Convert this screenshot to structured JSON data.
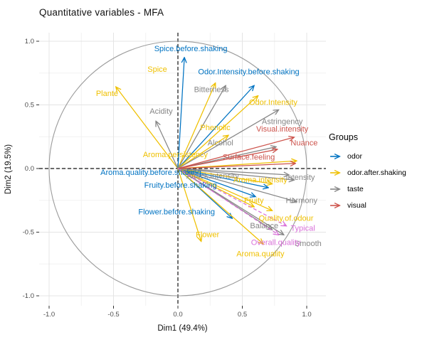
{
  "chart_data": {
    "type": "scatter",
    "subtype": "mfa-correlation-circle",
    "title": "Quantitative variables - MFA",
    "xlabel": "Dim1 (49.4%)",
    "ylabel": "Dim2 (19.5%)",
    "xlim": [
      -1.09,
      1.13
    ],
    "ylim": [
      -1.08,
      1.07
    ],
    "xticks": [
      -1.0,
      -0.5,
      0.0,
      0.5,
      1.0
    ],
    "yticks": [
      -1.0,
      -0.5,
      0.0,
      0.5,
      1.0
    ],
    "grid": "major+minor",
    "unit_circle": true,
    "zero_lines_dashed": true,
    "legend": {
      "title": "Groups",
      "position": "right",
      "entries": [
        {
          "label": "odor",
          "color": "#0073C2"
        },
        {
          "label": "odor.after.shaking",
          "color": "#EFC000"
        },
        {
          "label": "taste",
          "color": "#868686"
        },
        {
          "label": "visual",
          "color": "#CD534C"
        }
      ]
    },
    "groups": {
      "odor": {
        "color": "#0073C2",
        "dashed": false
      },
      "odor.after.shaking": {
        "color": "#EFC000",
        "dashed": false
      },
      "taste": {
        "color": "#868686",
        "dashed": false
      },
      "visual": {
        "color": "#CD534C",
        "dashed": false
      },
      "supplementary": {
        "color": "#D96FD9",
        "dashed": true
      }
    },
    "variables": [
      {
        "name": "Spice.before.shaking",
        "group": "odor",
        "x": 0.05,
        "y": 0.87,
        "lx": 0.1,
        "ly": 0.94
      },
      {
        "name": "Odor.Intensity.before.shaking",
        "group": "odor",
        "x": 0.59,
        "y": 0.65,
        "lx": 0.55,
        "ly": 0.76
      },
      {
        "name": "Aroma.quality.before.shaking",
        "group": "odor",
        "x": 0.7,
        "y": -0.15,
        "lx": -0.21,
        "ly": -0.03
      },
      {
        "name": "Fruity.before.shaking",
        "group": "odor",
        "x": 0.6,
        "y": -0.22,
        "lx": 0.02,
        "ly": -0.13
      },
      {
        "name": "Flower.before.shaking",
        "group": "odor",
        "x": 0.42,
        "y": -0.39,
        "lx": -0.01,
        "ly": -0.34
      },
      {
        "name": "Spice",
        "group": "odor.after.shaking",
        "x": 0.29,
        "y": 0.67,
        "lx": -0.16,
        "ly": 0.78
      },
      {
        "name": "Plante",
        "group": "odor.after.shaking",
        "x": -0.48,
        "y": 0.64,
        "lx": -0.55,
        "ly": 0.59
      },
      {
        "name": "Odor.Intensity",
        "group": "odor.after.shaking",
        "x": 0.62,
        "y": 0.57,
        "lx": 0.74,
        "ly": 0.52
      },
      {
        "name": "Phenolic",
        "group": "odor.after.shaking",
        "x": 0.39,
        "y": 0.26,
        "lx": 0.29,
        "ly": 0.32
      },
      {
        "name": "Aroma.persistency",
        "group": "odor.after.shaking",
        "x": 0.92,
        "y": 0.06,
        "lx": -0.02,
        "ly": 0.11
      },
      {
        "name": "Aroma.intensity",
        "group": "odor.after.shaking",
        "x": 0.73,
        "y": -0.12,
        "lx": 0.64,
        "ly": -0.09
      },
      {
        "name": "Fruity",
        "group": "odor.after.shaking",
        "x": 0.59,
        "y": -0.3,
        "lx": 0.59,
        "ly": -0.25
      },
      {
        "name": "Quality.of.odour",
        "group": "odor.after.shaking",
        "x": 0.73,
        "y": -0.33,
        "lx": 0.84,
        "ly": -0.39
      },
      {
        "name": "Flower",
        "group": "odor.after.shaking",
        "x": 0.18,
        "y": -0.57,
        "lx": 0.23,
        "ly": -0.52
      },
      {
        "name": "Aroma.quality",
        "group": "odor.after.shaking",
        "x": 0.66,
        "y": -0.59,
        "lx": 0.64,
        "ly": -0.67
      },
      {
        "name": "Bitterness",
        "group": "taste",
        "x": 0.37,
        "y": 0.65,
        "lx": 0.26,
        "ly": 0.62
      },
      {
        "name": "Acidity",
        "group": "taste",
        "x": -0.17,
        "y": 0.37,
        "lx": -0.13,
        "ly": 0.45
      },
      {
        "name": "Astringency",
        "group": "taste",
        "x": 0.78,
        "y": 0.46,
        "lx": 0.81,
        "ly": 0.37
      },
      {
        "name": "Alcohol",
        "group": "taste",
        "x": 0.76,
        "y": 0.17,
        "lx": 0.33,
        "ly": 0.2
      },
      {
        "name": "Attack.intensity",
        "group": "taste",
        "x": 0.86,
        "y": -0.05,
        "lx": 0.27,
        "ly": -0.06
      },
      {
        "name": "Intensity",
        "group": "taste",
        "x": 0.9,
        "y": -0.09,
        "lx": 0.95,
        "ly": -0.07
      },
      {
        "name": "Harmony",
        "group": "taste",
        "x": 0.92,
        "y": -0.26,
        "lx": 0.96,
        "ly": -0.25
      },
      {
        "name": "Balance",
        "group": "taste",
        "x": 0.73,
        "y": -0.48,
        "lx": 0.67,
        "ly": -0.45
      },
      {
        "name": "Smooth",
        "group": "taste",
        "x": 0.82,
        "y": -0.52,
        "lx": 1.01,
        "ly": -0.59
      },
      {
        "name": "Visual.intensity",
        "group": "visual",
        "x": 0.9,
        "y": 0.245,
        "lx": 0.81,
        "ly": 0.31
      },
      {
        "name": "Nuance",
        "group": "visual",
        "x": 0.77,
        "y": 0.15,
        "lx": 0.98,
        "ly": 0.2
      },
      {
        "name": "Surface.feeling",
        "group": "visual",
        "x": 0.91,
        "y": 0.04,
        "lx": 0.55,
        "ly": 0.09
      },
      {
        "name": "Typical",
        "group": "supplementary",
        "x": 0.84,
        "y": -0.45,
        "lx": 0.97,
        "ly": -0.47
      },
      {
        "name": "Overall.quality",
        "group": "supplementary",
        "x": 0.78,
        "y": -0.52,
        "lx": 0.76,
        "ly": -0.58
      }
    ]
  }
}
